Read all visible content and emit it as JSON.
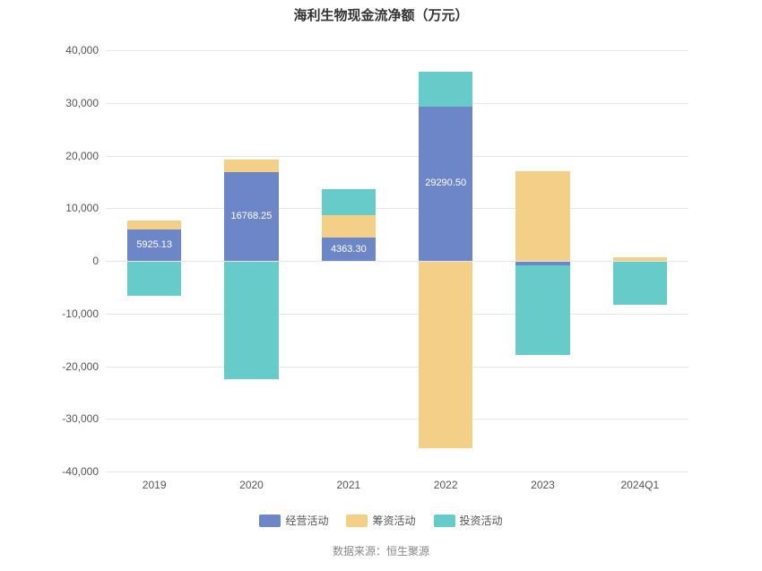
{
  "chart": {
    "type": "stacked-bar",
    "title": "海利生物现金流净额（万元）",
    "title_fontsize": 15,
    "title_color": "#333333",
    "background_color": "#ffffff",
    "grid_color": "#e6e6e6",
    "tick_label_color": "#555555",
    "tick_fontsize": 12,
    "bar_value_label_color": "#ffffff",
    "bar_value_label_fontsize": 11,
    "categories": [
      "2019",
      "2020",
      "2021",
      "2022",
      "2023",
      "2024Q1"
    ],
    "ymin": -40000,
    "ymax": 40000,
    "ytick_step": 10000,
    "yticks": [
      -40000,
      -30000,
      -20000,
      -10000,
      0,
      10000,
      20000,
      30000,
      40000
    ],
    "bar_width_ratio": 0.56,
    "series": [
      {
        "name": "经营活动",
        "color": "#6d86c7",
        "values": [
          5925.13,
          16768.25,
          4363.3,
          29290.5,
          -836.73,
          -122.97
        ],
        "show_label": true
      },
      {
        "name": "筹资活动",
        "color": "#f4cf87",
        "values": [
          1800,
          2500,
          4300,
          -35500,
          17000,
          700
        ],
        "show_label": false
      },
      {
        "name": "投资活动",
        "color": "#67cbca",
        "values": [
          -6600,
          -22500,
          4900,
          6600,
          -17000,
          -8200
        ],
        "show_label": false
      }
    ],
    "legend": {
      "items": [
        "经营活动",
        "筹资活动",
        "投资活动"
      ],
      "colors": [
        "#6d86c7",
        "#f4cf87",
        "#67cbca"
      ],
      "fontsize": 12,
      "position": "bottom"
    },
    "source_label": "数据来源：恒生聚源",
    "source_color": "#888888",
    "source_fontsize": 12
  }
}
